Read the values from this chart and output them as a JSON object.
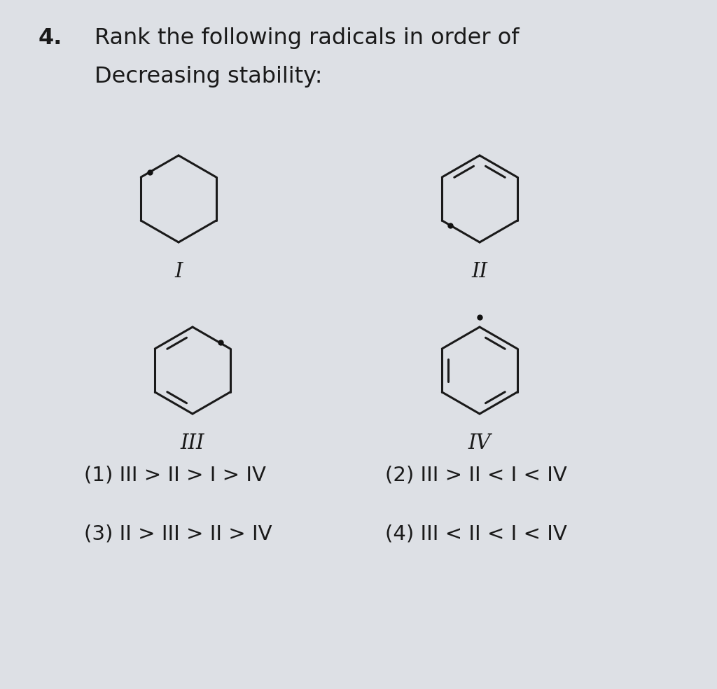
{
  "background_color": "#c8cdd4",
  "page_bg": "#dde0e5",
  "title_number": "4.",
  "title_text_line1": "Rank the following radicals in order of",
  "title_text_line2": "Decreasing stability:",
  "options": [
    "(1) III > II > I > IV",
    "(2) III > II < I < IV",
    "(3) II > III > II > IV",
    "(4) III < II < I < IV"
  ],
  "labels": [
    "I",
    "II",
    "III",
    "IV"
  ],
  "text_color": "#1a1a1a",
  "font_size_title": 23,
  "font_size_options": 21,
  "font_size_labels": 21,
  "hex_r": 0.62,
  "lw": 2.2
}
